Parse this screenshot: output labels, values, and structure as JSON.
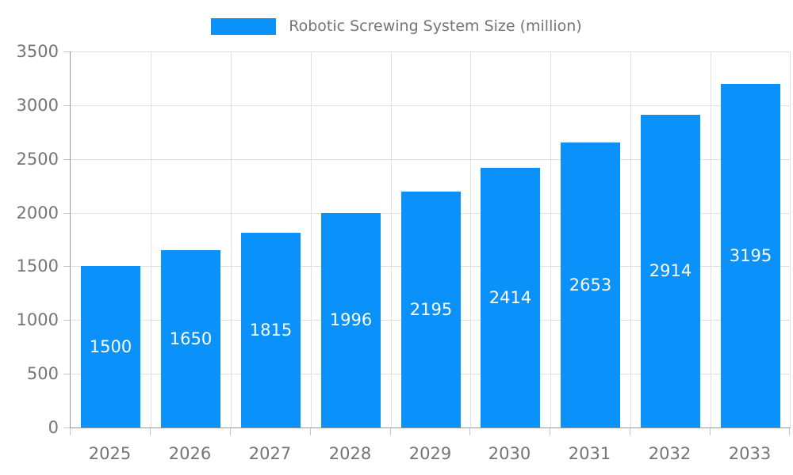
{
  "legend": {
    "label": "Robotic Screwing System Size (million)"
  },
  "colors": {
    "bar": "#0a91fa",
    "grid": "#e0e0e0",
    "axis": "#999999",
    "tick": "#c6c6c6",
    "label_text": "#757575",
    "bar_label_text": "#ffffff",
    "background": "#ffffff"
  },
  "chart_data": {
    "type": "bar",
    "categories": [
      "2025",
      "2026",
      "2027",
      "2028",
      "2029",
      "2030",
      "2031",
      "2032",
      "2033"
    ],
    "series": [
      {
        "name": "Robotic Screwing System Size (million)",
        "values": [
          1500,
          1650,
          1815,
          1996,
          2195,
          2414,
          2653,
          2914,
          3195
        ]
      }
    ],
    "xlabel": "",
    "ylabel": "",
    "ylim": [
      0,
      3500
    ],
    "yticks": [
      0,
      500,
      1000,
      1500,
      2000,
      2500,
      3000,
      3500
    ],
    "grid": true,
    "legend_position": "top-center",
    "value_labels": "inside-center"
  }
}
